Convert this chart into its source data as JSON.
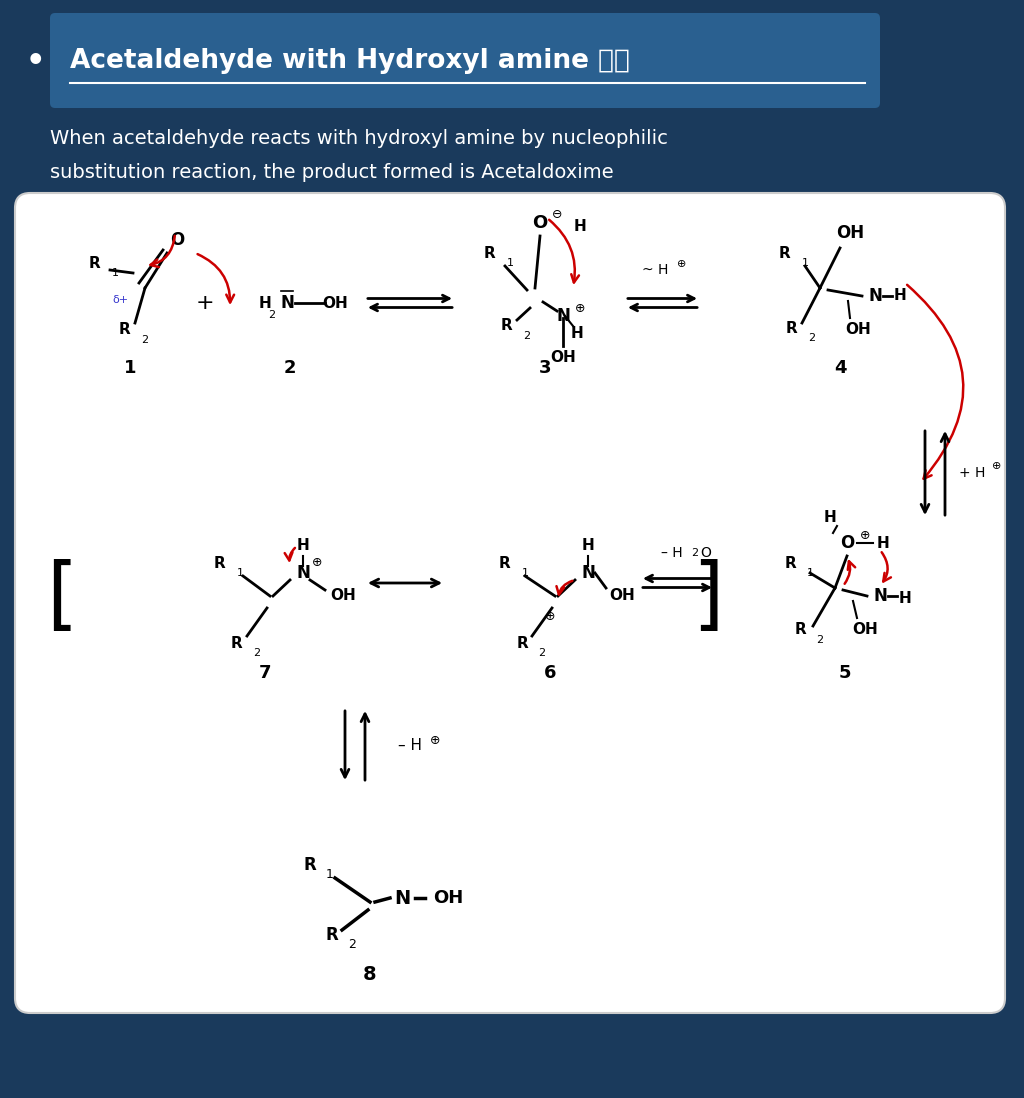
{
  "bg_color": "#1a3a5c",
  "panel_bg": "#ffffff",
  "title_text": "Acetaldehyde with Hydroxyl amine",
  "title_highlight": "#2a6090",
  "subtitle_line1": "When acetaldehyde reacts with hydroxyl amine by nucleophilic",
  "subtitle_line2": "substitution reaction, the product formed is Acetaldoxime",
  "text_color": "#ffffff",
  "panel_text": "#000000",
  "red_arrow": "#cc0000"
}
